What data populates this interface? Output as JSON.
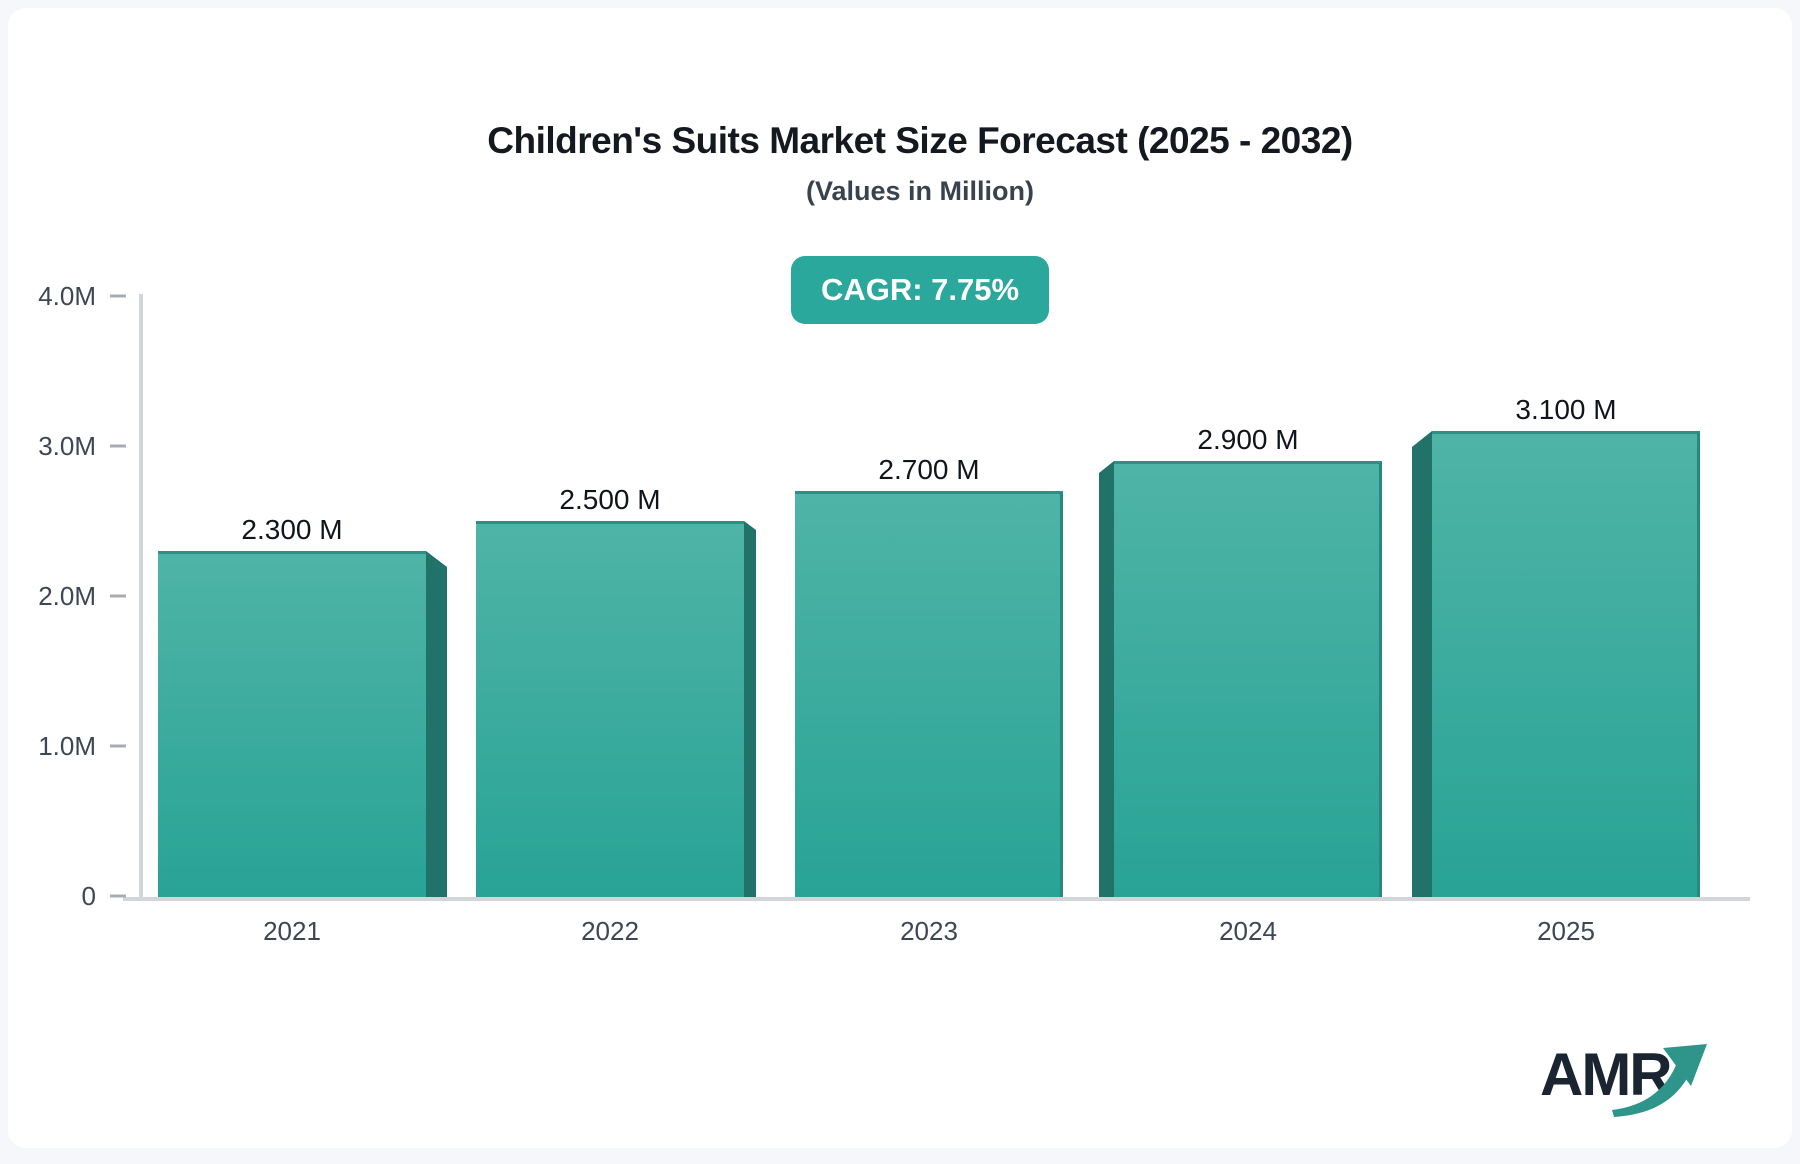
{
  "page": {
    "background": "#f5f7fa",
    "card_background": "#ffffff"
  },
  "header": {
    "title": "Children's Suits Market Size Forecast (2025 - 2032)",
    "subtitle": "(Values in Million)"
  },
  "badge": {
    "label": "CAGR: 7.75%",
    "color": "#2aa89c",
    "text_color": "#ffffff"
  },
  "chart_data": {
    "type": "bar",
    "title": "Children's Suits Market Size Forecast (2025 - 2032)",
    "subtitle": "(Values in Million)",
    "unit": "Million",
    "categories": [
      "2021",
      "2022",
      "2023",
      "2024",
      "2025"
    ],
    "values": [
      2.3,
      2.5,
      2.7,
      2.9,
      3.1
    ],
    "value_labels": [
      "2.300 M",
      "2.500 M",
      "2.700 M",
      "2.900 M",
      "3.100 M"
    ],
    "cagr_label": "CAGR: 7.75%",
    "ylim": [
      0,
      4
    ],
    "yticks": [
      0,
      1,
      2,
      3,
      4
    ],
    "ytick_labels": [
      "0",
      "1.0M",
      "2.0M",
      "3.0M",
      "4.0M"
    ],
    "grid": false,
    "legend": false,
    "colors": {
      "bar_face_top": "#4fb4a7",
      "bar_face_bottom": "#28a396",
      "bar_side": "#217268",
      "bar_top_edge": "#2e9084",
      "bar_right_edge": "#28887c",
      "axis_line": "#d2d6db",
      "tick_mark": "#a7acb4",
      "axis_label": "#3d4753",
      "value_label": "#10151b"
    }
  },
  "logo": {
    "text": "AMR",
    "color": "#1b2531",
    "arrow_color": "#2f958a"
  }
}
